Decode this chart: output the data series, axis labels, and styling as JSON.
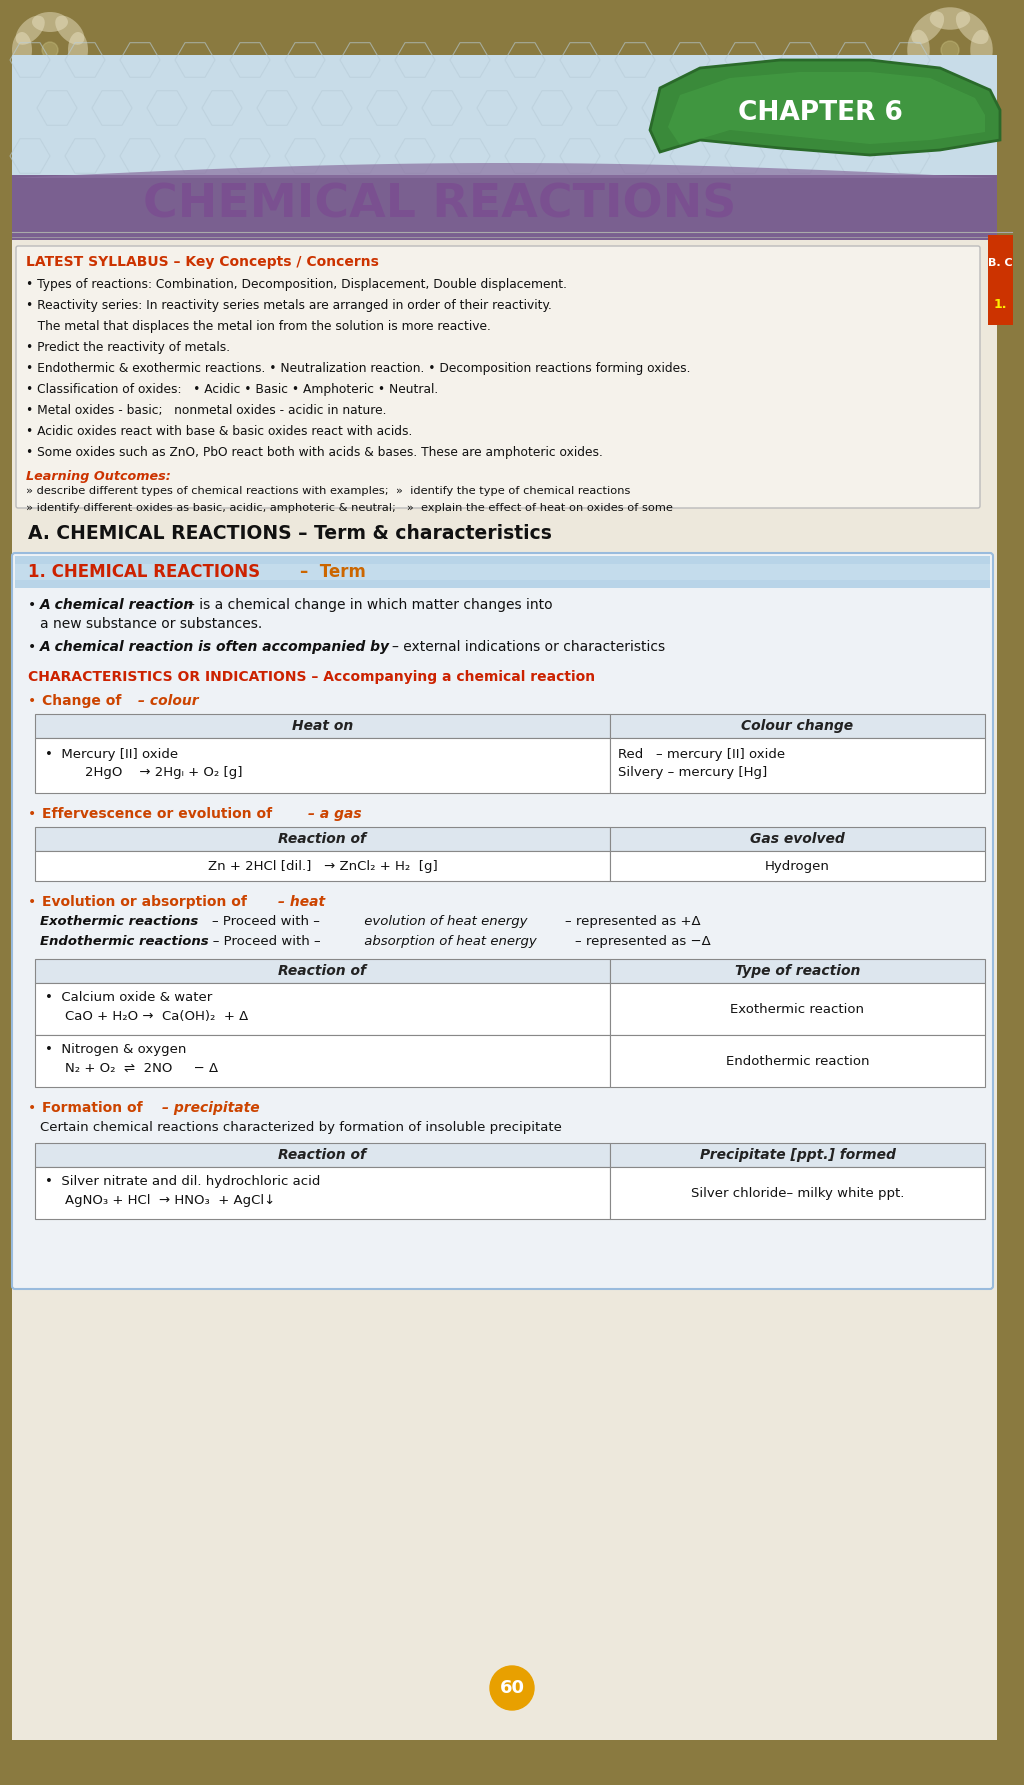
{
  "chapter_label": "CHAPTER 6",
  "main_title": "CHEMICAL REACTIONS",
  "bg_outer": "#8a7a40",
  "bg_page_top": "#cce0ec",
  "bg_page_main": "#f0ebe0",
  "purple_banner": "#7a6090",
  "green_tab": "#3a8a3a",
  "title_color": "#6a4a80",
  "right_tab_color": "#cc3300",
  "syllabus_title": "LATEST SYLLABUS – Key Concepts / Concerns",
  "syllabus_bullets": [
    "• Types of reactions: Combination, Decomposition, Displacement, Double displacement.",
    "• Reactivity series: In reactivity series metals are arranged in order of their reactivity.",
    "   The metal that displaces the metal ion from the solution is more reactive.",
    "• Predict the reactivity of metals.",
    "• Endothermic & exothermic reactions. • Neutralization reaction. • Decomposition reactions forming oxides.",
    "• Classification of oxides:   • Acidic • Basic • Amphoteric • Neutral.",
    "• Metal oxides - basic;   nonmetal oxides - acidic in nature.",
    "• Acidic oxides react with base & basic oxides react with acids.",
    "• Some oxides such as ZnO, PbO react both with acids & bases. These are amphoteric oxides."
  ],
  "learning_outcomes_label": "Learning Outcomes:",
  "learning_outcomes": [
    "» describe different types of chemical reactions with examples;  »  identify the type of chemical reactions",
    "» identify different oxides as basic, acidic, amphoteric & neutral;   »  explain the effect of heat on oxides of some"
  ],
  "section_a_title": "A. CHEMICAL REACTIONS – Term & characteristics",
  "subsec1_red": "1. CHEMICAL REACTIONS",
  "subsec1_orange": "–  Term",
  "bullet1a_bold": "A chemical reaction",
  "bullet1a_rest": "– is a chemical change in which matter changes into",
  "bullet1b": "a new substance or substances.",
  "bullet2a_bold": "A chemical reaction is often accompanied by",
  "bullet2b": "– external indications or characteristics",
  "char_heading": "CHARACTERISTICS OR INDICATIONS – Accompanying a chemical reaction",
  "change_colour_label": "Change of – colour",
  "table1_header_left": "Heat on",
  "table1_header_right": "Colour change",
  "t1r1_left_line1": "•  Mercury [II] oxide",
  "t1r1_left_line2": "2HgO    → 2Hgₗ + O₂ [g]",
  "t1r1_right_line1": "Red   – mercury [II] oxide",
  "t1r1_right_line2": "Silvery – mercury [Hg]",
  "effervescence_label": "Effervescence or evolution of – a gas",
  "table2_header_left": "Reaction of",
  "table2_header_right": "Gas evolved",
  "t2r1_left": "Zn + 2HCl [dil.]   → ZnCl₂ + H₂  [g]",
  "t2r1_right": "Hydrogen",
  "evolution_label": "Evolution or absorption of – heat",
  "exo_bold": "Exothermic reactions",
  "exo_rest": "– Proceed with – evolution of heat energy – represented as +Δ",
  "endo_bold": "Endothermic reactions",
  "endo_rest": "– Proceed with – absorption of heat energy – represented as −Δ",
  "table3_header_left": "Reaction of",
  "table3_header_right": "Type of reaction",
  "t3r1_left_line1": "•  Calcium oxide & water",
  "t3r1_left_line2": "CaO + H₂O →  Ca(OH)₂  + Δ",
  "t3r1_right": "Exothermic reaction",
  "t3r2_left_line1": "•  Nitrogen & oxygen",
  "t3r2_left_line2": "N₂ + O₂  ⇌  2NO     − Δ",
  "t3r2_right": "Endothermic reaction",
  "precipitate_label_main": "Formation of",
  "precipitate_label_italic": "– precipitate",
  "precipitate_text": "Certain chemical reactions characterized by formation of insoluble precipitate",
  "table4_header_left": "Reaction of",
  "table4_header_right": "Precipitate [ppt.] formed",
  "t4r1_left_line1": "•  Silver nitrate and dil. hydrochloric acid",
  "t4r1_left_line2": "AgNO₃ + HCl  → HNO₃  + AgCl↓",
  "t4r1_right": "Silver chloride– milky white ppt.",
  "page_number": "60"
}
